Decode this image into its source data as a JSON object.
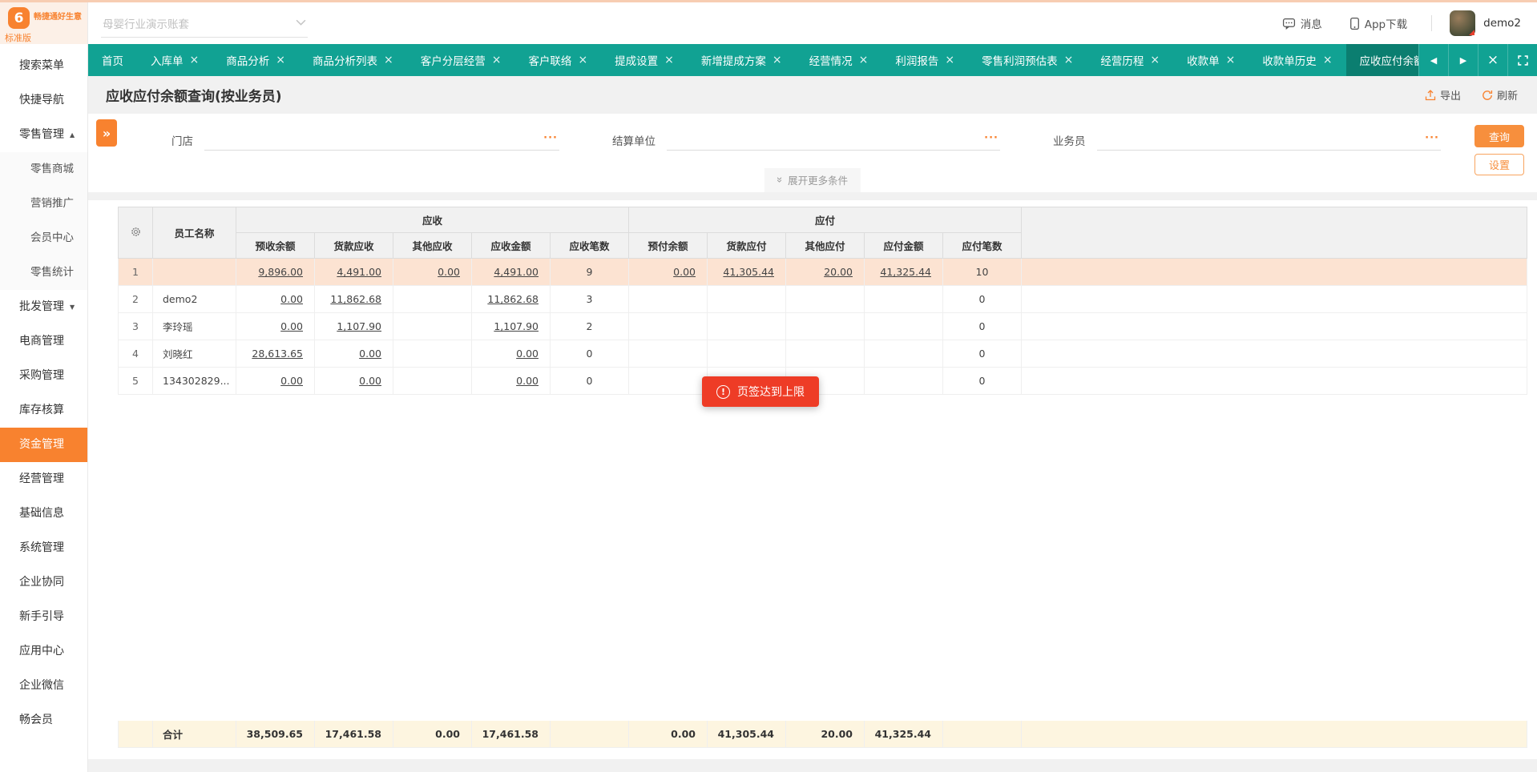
{
  "brand": {
    "title": "畅捷通好生意",
    "edition": "标准版",
    "glyph": "6"
  },
  "header": {
    "account_text": "母婴行业演示账套",
    "messages_label": "消息",
    "app_download_label": "App下载",
    "username": "demo2"
  },
  "sidebar": {
    "items": [
      {
        "label": "搜索菜单"
      },
      {
        "label": "快捷导航"
      },
      {
        "label": "零售管理",
        "caret": "up"
      },
      {
        "label": "零售商城",
        "sub": true
      },
      {
        "label": "营销推广",
        "sub": true
      },
      {
        "label": "会员中心",
        "sub": true
      },
      {
        "label": "零售统计",
        "sub": true
      },
      {
        "label": "批发管理",
        "caret": "down"
      },
      {
        "label": "电商管理"
      },
      {
        "label": "采购管理"
      },
      {
        "label": "库存核算"
      },
      {
        "label": "资金管理",
        "active": true
      },
      {
        "label": "经营管理"
      },
      {
        "label": "基础信息"
      },
      {
        "label": "系统管理"
      },
      {
        "label": "企业协同"
      },
      {
        "label": "新手引导"
      },
      {
        "label": "应用中心"
      },
      {
        "label": "企业微信"
      },
      {
        "label": "畅会员"
      }
    ]
  },
  "tabs": {
    "items": [
      {
        "label": "首页",
        "closable": false
      },
      {
        "label": "入库单",
        "closable": true
      },
      {
        "label": "商品分析",
        "closable": true
      },
      {
        "label": "商品分析列表",
        "closable": true
      },
      {
        "label": "客户分层经营",
        "closable": true
      },
      {
        "label": "客户联络",
        "closable": true
      },
      {
        "label": "提成设置",
        "closable": true
      },
      {
        "label": "新增提成方案",
        "closable": true
      },
      {
        "label": "经营情况",
        "closable": true
      },
      {
        "label": "利润报告",
        "closable": true
      },
      {
        "label": "零售利润预估表",
        "closable": true
      },
      {
        "label": "经营历程",
        "closable": true
      },
      {
        "label": "收款单",
        "closable": true
      },
      {
        "label": "收款单历史",
        "closable": true
      },
      {
        "label": "应收应付余额查询",
        "closable": true,
        "active": true
      }
    ]
  },
  "page": {
    "title": "应收应付余额查询(按业务员)",
    "export_label": "导出",
    "refresh_label": "刷新"
  },
  "filters": {
    "fields": [
      {
        "label": "门店"
      },
      {
        "label": "结算单位"
      },
      {
        "label": "业务员"
      }
    ],
    "search_label": "查询",
    "settings_label": "设置",
    "expand_label": "展开更多条件"
  },
  "table": {
    "name_header": "员工名称",
    "group_receivable": "应收",
    "group_payable": "应付",
    "receivable_cols": [
      "预收余额",
      "货款应收",
      "其他应收",
      "应收金额",
      "应收笔数"
    ],
    "payable_cols": [
      "预付余额",
      "货款应付",
      "其他应付",
      "应付金额",
      "应付笔数"
    ],
    "rows": [
      {
        "num": "1",
        "name": "",
        "highlight": true,
        "values": [
          "9,896.00",
          "4,491.00",
          "0.00",
          "4,491.00",
          "9",
          "0.00",
          "41,305.44",
          "20.00",
          "41,325.44",
          "10"
        ]
      },
      {
        "num": "2",
        "name": "demo2",
        "values": [
          "0.00",
          "11,862.68",
          "",
          "11,862.68",
          "3",
          "",
          "",
          "",
          "",
          "0"
        ]
      },
      {
        "num": "3",
        "name": "李玲瑶",
        "values": [
          "0.00",
          "1,107.90",
          "",
          "1,107.90",
          "2",
          "",
          "",
          "",
          "",
          "0"
        ]
      },
      {
        "num": "4",
        "name": "刘晓红",
        "values": [
          "28,613.65",
          "0.00",
          "",
          "0.00",
          "0",
          "",
          "",
          "",
          "",
          "0"
        ]
      },
      {
        "num": "5",
        "name": "134302829...",
        "values": [
          "0.00",
          "0.00",
          "",
          "0.00",
          "0",
          "",
          "",
          "",
          "",
          "0"
        ]
      }
    ],
    "footer": {
      "label": "合计",
      "values": [
        "38,509.65",
        "17,461.58",
        "0.00",
        "17,461.58",
        "",
        "0.00",
        "41,305.44",
        "20.00",
        "41,325.44",
        ""
      ]
    }
  },
  "toast": {
    "message": "页签达到上限"
  },
  "colors": {
    "teal": "#11a293",
    "teal_active": "#0b7e70",
    "orange": "#f8822f",
    "button_orange": "#f78f3d",
    "row_highlight": "#fce3d2",
    "footer_bg": "#fdf5e0",
    "toast_red": "#ee3c26"
  }
}
